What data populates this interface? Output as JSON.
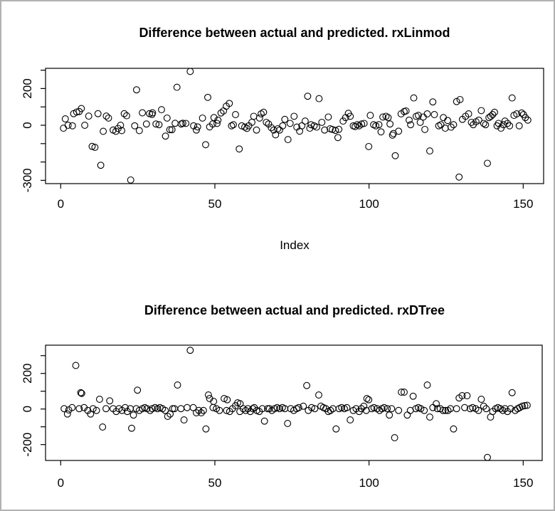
{
  "window": {
    "bg": "#ffffff",
    "border_color": "#b1b1b1"
  },
  "chart_data": [
    {
      "type": "scatter",
      "title": "Difference between actual and predicted. rxLinmod",
      "xlabel": "Index",
      "ylabel": "",
      "marker": "open-circle",
      "grid": false,
      "xlim": [
        -5,
        157
      ],
      "ylim": [
        -318,
        310
      ],
      "x_ticks": [
        0,
        50,
        100,
        150
      ],
      "y_ticks": [
        300,
        200,
        100,
        0,
        -100,
        -200,
        -300
      ],
      "y_tick_labels": [
        200,
        0,
        -300
      ],
      "points": [
        [
          0.9,
          -16
        ],
        [
          1.5,
          35
        ],
        [
          2.4,
          0
        ],
        [
          3.8,
          -3
        ],
        [
          4.2,
          63
        ],
        [
          5.2,
          72
        ],
        [
          6,
          75
        ],
        [
          6.7,
          91
        ],
        [
          7.8,
          0
        ],
        [
          9.1,
          50
        ],
        [
          10.2,
          -115
        ],
        [
          11.1,
          -120
        ],
        [
          12.1,
          63
        ],
        [
          13,
          -218
        ],
        [
          13.8,
          -33
        ],
        [
          14.8,
          50
        ],
        [
          15.5,
          39
        ],
        [
          17,
          -26
        ],
        [
          17.9,
          -33
        ],
        [
          18.6,
          -17
        ],
        [
          19.4,
          0
        ],
        [
          19.8,
          -29
        ],
        [
          20.6,
          63
        ],
        [
          21.4,
          52
        ],
        [
          22.7,
          -298
        ],
        [
          24,
          -3
        ],
        [
          24.6,
          193
        ],
        [
          25.5,
          -29
        ],
        [
          26.5,
          68
        ],
        [
          27.8,
          7
        ],
        [
          28.8,
          63
        ],
        [
          29.6,
          59
        ],
        [
          29.8,
          68
        ],
        [
          30.9,
          7
        ],
        [
          31.9,
          3
        ],
        [
          32.7,
          85
        ],
        [
          34,
          -59
        ],
        [
          34.5,
          39
        ],
        [
          35.4,
          -24
        ],
        [
          36.1,
          -24
        ],
        [
          37.1,
          11
        ],
        [
          37.7,
          207
        ],
        [
          39.1,
          7
        ],
        [
          39.6,
          11
        ],
        [
          40.6,
          10
        ],
        [
          42,
          293
        ],
        [
          43.1,
          -3
        ],
        [
          44,
          -26
        ],
        [
          44.4,
          -9
        ],
        [
          46,
          39
        ],
        [
          47,
          -106
        ],
        [
          47.7,
          152
        ],
        [
          48.3,
          -9
        ],
        [
          49.3,
          7
        ],
        [
          49.7,
          42
        ],
        [
          50.7,
          10
        ],
        [
          51,
          28
        ],
        [
          52,
          67
        ],
        [
          52.8,
          78
        ],
        [
          53.7,
          104
        ],
        [
          54.7,
          119
        ],
        [
          55.4,
          -3
        ],
        [
          56,
          3
        ],
        [
          56.7,
          58
        ],
        [
          57.9,
          -129
        ],
        [
          58.7,
          -3
        ],
        [
          59.7,
          -10
        ],
        [
          60.4,
          -17
        ],
        [
          61,
          -3
        ],
        [
          62,
          16
        ],
        [
          62.6,
          49
        ],
        [
          63.5,
          -26
        ],
        [
          64.5,
          39
        ],
        [
          65,
          62
        ],
        [
          65.8,
          71
        ],
        [
          66.7,
          16
        ],
        [
          67.4,
          7
        ],
        [
          68.3,
          -13
        ],
        [
          69.1,
          -26
        ],
        [
          69.7,
          -52
        ],
        [
          70.4,
          -19
        ],
        [
          71,
          -26
        ],
        [
          72,
          -3
        ],
        [
          72.7,
          32
        ],
        [
          73.7,
          -78
        ],
        [
          74.4,
          10
        ],
        [
          75.7,
          49
        ],
        [
          76.6,
          -10
        ],
        [
          77.5,
          -32
        ],
        [
          78.2,
          -3
        ],
        [
          79.3,
          23
        ],
        [
          80.1,
          158
        ],
        [
          80.8,
          -16
        ],
        [
          81.2,
          3
        ],
        [
          82.2,
          -3
        ],
        [
          83,
          -10
        ],
        [
          83.8,
          145
        ],
        [
          84.7,
          16
        ],
        [
          85.6,
          -26
        ],
        [
          86.8,
          45
        ],
        [
          87.4,
          -19
        ],
        [
          88.1,
          -23
        ],
        [
          89.1,
          -28
        ],
        [
          89.9,
          -67
        ],
        [
          90.2,
          -22
        ],
        [
          91.6,
          23
        ],
        [
          92.4,
          42
        ],
        [
          93.3,
          65
        ],
        [
          93.9,
          49
        ],
        [
          94.9,
          -3
        ],
        [
          95.5,
          -7
        ],
        [
          96.2,
          3
        ],
        [
          96.8,
          -3
        ],
        [
          97.6,
          7
        ],
        [
          98.4,
          10
        ],
        [
          99.9,
          -116
        ],
        [
          100.4,
          54
        ],
        [
          101.5,
          3
        ],
        [
          102.2,
          -3
        ],
        [
          103.2,
          3
        ],
        [
          103.9,
          -36
        ],
        [
          104.5,
          45
        ],
        [
          105.5,
          49
        ],
        [
          106.2,
          42
        ],
        [
          106.8,
          7
        ],
        [
          107.6,
          -54
        ],
        [
          107.9,
          -45
        ],
        [
          108.5,
          -166
        ],
        [
          109.6,
          -32
        ],
        [
          110.4,
          62
        ],
        [
          111.4,
          75
        ],
        [
          112,
          78
        ],
        [
          113,
          28
        ],
        [
          113.5,
          3
        ],
        [
          114.5,
          149
        ],
        [
          115.3,
          49
        ],
        [
          116,
          54
        ],
        [
          116.6,
          16
        ],
        [
          117.6,
          45
        ],
        [
          118.1,
          -23
        ],
        [
          118.9,
          62
        ],
        [
          119.7,
          -140
        ],
        [
          120.7,
          127
        ],
        [
          121.2,
          58
        ],
        [
          122.6,
          -3
        ],
        [
          123.3,
          3
        ],
        [
          124.1,
          42
        ],
        [
          124.7,
          -16
        ],
        [
          125.5,
          26
        ],
        [
          126.6,
          -10
        ],
        [
          127.4,
          3
        ],
        [
          128.4,
          129
        ],
        [
          129.2,
          -282
        ],
        [
          129.5,
          140
        ],
        [
          130.3,
          32
        ],
        [
          131.3,
          49
        ],
        [
          132.3,
          62
        ],
        [
          133.2,
          16
        ],
        [
          133.8,
          3
        ],
        [
          134.7,
          19
        ],
        [
          135.6,
          28
        ],
        [
          136.4,
          80
        ],
        [
          137.2,
          10
        ],
        [
          137.8,
          3
        ],
        [
          138.4,
          -207
        ],
        [
          138.9,
          42
        ],
        [
          139.5,
          49
        ],
        [
          140.1,
          58
        ],
        [
          140.7,
          71
        ],
        [
          141.5,
          -3
        ],
        [
          142,
          10
        ],
        [
          142.8,
          -16
        ],
        [
          143.6,
          3
        ],
        [
          144.1,
          23
        ],
        [
          144.9,
          10
        ],
        [
          145.6,
          -3
        ],
        [
          146.4,
          149
        ],
        [
          147,
          54
        ],
        [
          147.9,
          62
        ],
        [
          148.7,
          -3
        ],
        [
          149.5,
          67
        ],
        [
          150.1,
          58
        ],
        [
          150.7,
          42
        ],
        [
          151.5,
          28
        ]
      ]
    },
    {
      "type": "scatter",
      "title": "Difference between actual and predicted. rxDTree",
      "xlabel": "",
      "ylabel": "",
      "marker": "open-circle",
      "grid": false,
      "xlim": [
        -5,
        156
      ],
      "ylim": [
        -289,
        360
      ],
      "x_ticks": [
        0,
        50,
        100,
        150
      ],
      "y_ticks": [
        300,
        200,
        100,
        0,
        -100,
        -200
      ],
      "y_tick_labels": [
        200,
        0,
        -200
      ],
      "points": [
        [
          1.1,
          2
        ],
        [
          2.2,
          -28
        ],
        [
          2.6,
          -5
        ],
        [
          3.7,
          8
        ],
        [
          4.9,
          245
        ],
        [
          6,
          2
        ],
        [
          6.5,
          92
        ],
        [
          6.8,
          88
        ],
        [
          7.6,
          8
        ],
        [
          8.8,
          -8
        ],
        [
          9.7,
          -28
        ],
        [
          10.5,
          2
        ],
        [
          11.6,
          -8
        ],
        [
          12.6,
          55
        ],
        [
          13.6,
          -101
        ],
        [
          14.7,
          2
        ],
        [
          15.9,
          46
        ],
        [
          17,
          2
        ],
        [
          18,
          -14
        ],
        [
          18.9,
          2
        ],
        [
          19.9,
          -8
        ],
        [
          20.9,
          8
        ],
        [
          21.6,
          -14
        ],
        [
          22.6,
          2
        ],
        [
          23,
          -108
        ],
        [
          23.6,
          -34
        ],
        [
          24.5,
          2
        ],
        [
          24.9,
          106
        ],
        [
          25.5,
          -8
        ],
        [
          26.5,
          2
        ],
        [
          27.3,
          8
        ],
        [
          28,
          2
        ],
        [
          29,
          -8
        ],
        [
          29.7,
          2
        ],
        [
          30.6,
          8
        ],
        [
          31.4,
          2
        ],
        [
          32.2,
          8
        ],
        [
          33,
          2
        ],
        [
          33.9,
          -8
        ],
        [
          34.7,
          -41
        ],
        [
          35.5,
          -28
        ],
        [
          36.3,
          2
        ],
        [
          36.9,
          2
        ],
        [
          37.9,
          135
        ],
        [
          39,
          2
        ],
        [
          40,
          -61
        ],
        [
          41,
          8
        ],
        [
          42,
          330
        ],
        [
          43,
          8
        ],
        [
          44,
          -21
        ],
        [
          44.8,
          -8
        ],
        [
          45.6,
          -21
        ],
        [
          46.3,
          -8
        ],
        [
          47.1,
          -112
        ],
        [
          47.9,
          79
        ],
        [
          48.3,
          59
        ],
        [
          49.4,
          8
        ],
        [
          49.6,
          43
        ],
        [
          50.5,
          2
        ],
        [
          51.5,
          -8
        ],
        [
          53,
          59
        ],
        [
          53.8,
          -8
        ],
        [
          54,
          52
        ],
        [
          54.8,
          -14
        ],
        [
          55.7,
          2
        ],
        [
          56.7,
          19
        ],
        [
          57.4,
          35
        ],
        [
          58.1,
          -14
        ],
        [
          58.2,
          30
        ],
        [
          59.2,
          2
        ],
        [
          60,
          -8
        ],
        [
          60.7,
          2
        ],
        [
          61.5,
          -14
        ],
        [
          62.3,
          2
        ],
        [
          62.8,
          8
        ],
        [
          63.6,
          -8
        ],
        [
          64.4,
          -14
        ],
        [
          65.4,
          2
        ],
        [
          66.1,
          -68
        ],
        [
          67.1,
          2
        ],
        [
          67.7,
          2
        ],
        [
          68.5,
          -8
        ],
        [
          69.4,
          2
        ],
        [
          70.2,
          8
        ],
        [
          71,
          2
        ],
        [
          71.9,
          8
        ],
        [
          72.7,
          2
        ],
        [
          73.6,
          -81
        ],
        [
          74.6,
          2
        ],
        [
          75.6,
          -8
        ],
        [
          76.5,
          2
        ],
        [
          77.2,
          8
        ],
        [
          78.7,
          16
        ],
        [
          79.8,
          132
        ],
        [
          80.3,
          -8
        ],
        [
          81.4,
          8
        ],
        [
          82.4,
          2
        ],
        [
          83.7,
          79
        ],
        [
          84.4,
          16
        ],
        [
          85.2,
          8
        ],
        [
          86,
          2
        ],
        [
          86.8,
          -14
        ],
        [
          87.5,
          -8
        ],
        [
          88.3,
          2
        ],
        [
          89.3,
          -112
        ],
        [
          90.3,
          2
        ],
        [
          91.1,
          8
        ],
        [
          92,
          2
        ],
        [
          92.8,
          8
        ],
        [
          93.9,
          -61
        ],
        [
          94.9,
          -8
        ],
        [
          95.8,
          2
        ],
        [
          96.8,
          -14
        ],
        [
          97.5,
          2
        ],
        [
          98.3,
          16
        ],
        [
          99.1,
          -8
        ],
        [
          99.3,
          59
        ],
        [
          99.9,
          52
        ],
        [
          100.9,
          2
        ],
        [
          101.6,
          8
        ],
        [
          102.6,
          2
        ],
        [
          103.4,
          -8
        ],
        [
          104.2,
          2
        ],
        [
          104.9,
          8
        ],
        [
          105.9,
          2
        ],
        [
          106.6,
          -34
        ],
        [
          107.3,
          2
        ],
        [
          108.3,
          -161
        ],
        [
          109.6,
          -8
        ],
        [
          110.5,
          95
        ],
        [
          111.4,
          95
        ],
        [
          112.4,
          -34
        ],
        [
          113.4,
          -8
        ],
        [
          114.3,
          72
        ],
        [
          115.2,
          2
        ],
        [
          116,
          8
        ],
        [
          116.8,
          2
        ],
        [
          117.9,
          -8
        ],
        [
          118.9,
          135
        ],
        [
          119.7,
          -45
        ],
        [
          120.7,
          8
        ],
        [
          121.8,
          30
        ],
        [
          122.2,
          2
        ],
        [
          123.1,
          2
        ],
        [
          124,
          -8
        ],
        [
          124.8,
          -8
        ],
        [
          125.6,
          -8
        ],
        [
          126.4,
          2
        ],
        [
          127.4,
          -112
        ],
        [
          128.4,
          2
        ],
        [
          129.2,
          62
        ],
        [
          130.2,
          75
        ],
        [
          131,
          8
        ],
        [
          131.8,
          75
        ],
        [
          132.8,
          2
        ],
        [
          133.6,
          8
        ],
        [
          134.6,
          2
        ],
        [
          135.5,
          -8
        ],
        [
          136.4,
          55
        ],
        [
          137.2,
          16
        ],
        [
          138,
          2
        ],
        [
          138.4,
          -272
        ],
        [
          139.4,
          -45
        ],
        [
          140.1,
          -14
        ],
        [
          141.1,
          2
        ],
        [
          141.8,
          8
        ],
        [
          142.6,
          2
        ],
        [
          143.4,
          -8
        ],
        [
          144.1,
          2
        ],
        [
          144.9,
          -14
        ],
        [
          145.9,
          2
        ],
        [
          146.4,
          92
        ],
        [
          147.4,
          -8
        ],
        [
          148.2,
          2
        ],
        [
          148.9,
          8
        ],
        [
          149.7,
          16
        ],
        [
          150.5,
          19
        ],
        [
          151.3,
          21
        ]
      ]
    }
  ]
}
